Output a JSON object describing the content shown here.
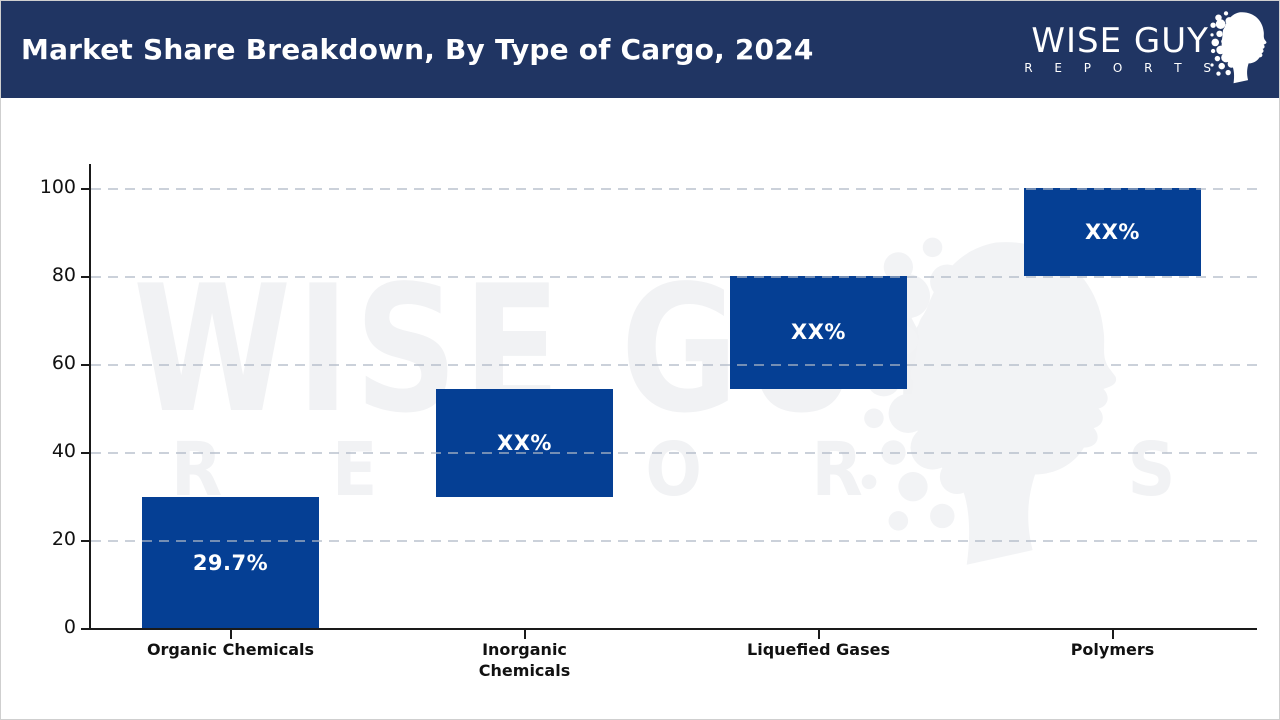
{
  "header": {
    "title": "Market Share Breakdown, By Type of Cargo, 2024",
    "brand": {
      "name": "WISE GUY",
      "tagline": "R E P O R T S"
    }
  },
  "watermark": {
    "name": "WISE GUY",
    "tagline": "R E P O R T S"
  },
  "colors": {
    "header_bg": "#203563",
    "bar": "#053f94",
    "bar_label": "#ffffff",
    "axis": "#1a1a1a",
    "watermark": "#f1f2f4"
  },
  "chart_data": {
    "type": "bar",
    "variant": "waterfall",
    "title": "Market Share Breakdown, By Type of Cargo, 2024",
    "categories": [
      "Organic Chemicals",
      "Inorganic\nChemicals",
      "Liquefied Gases",
      "Polymers"
    ],
    "segments": [
      [
        0,
        29.7
      ],
      [
        29.7,
        54.4
      ],
      [
        54.4,
        80.1
      ],
      [
        80.1,
        100
      ]
    ],
    "bar_labels": [
      "29.7%",
      "XX%",
      "XX%",
      "XX%"
    ],
    "xlabel": "",
    "ylabel": "",
    "ylim": [
      0,
      105
    ],
    "yticks": [
      0,
      20,
      40,
      60,
      80,
      100
    ],
    "grid": "horizontal-dashed",
    "legend": "none"
  }
}
